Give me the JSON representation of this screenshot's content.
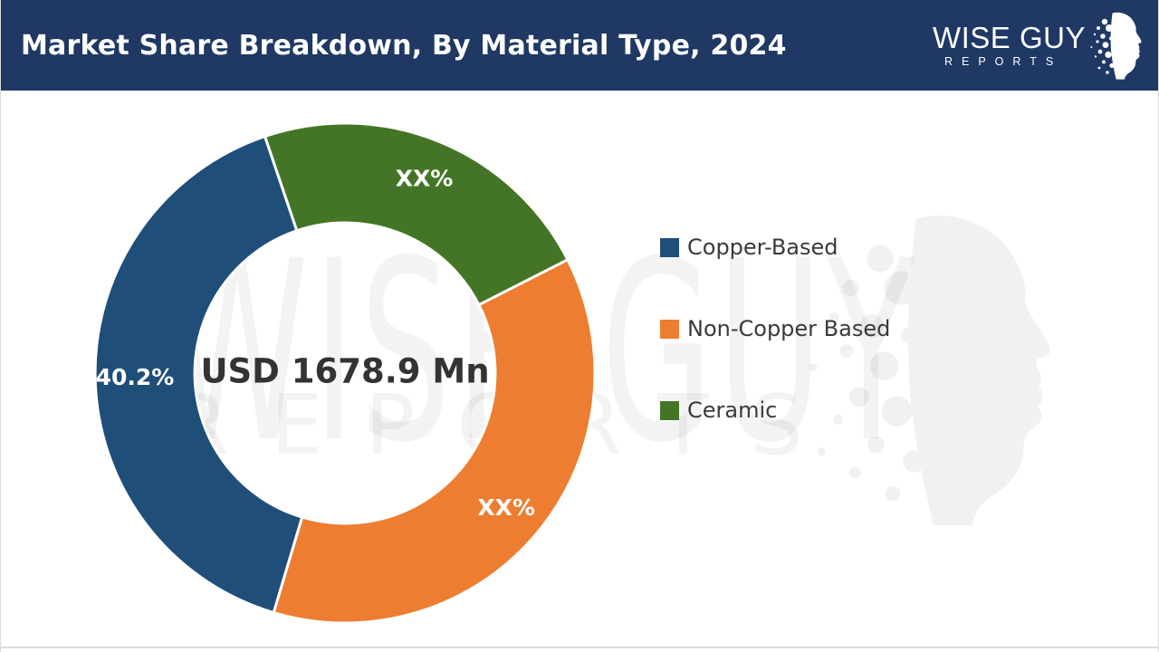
{
  "header": {
    "title": "Market Share Breakdown, By Material Type, 2024",
    "brand": {
      "line1": "WISE GUY",
      "line2": "REPORTS"
    }
  },
  "watermark": {
    "line1": "WISE GUY",
    "line2": "REPORTS"
  },
  "chart_data": {
    "type": "pie",
    "subtype": "donut",
    "title": "Market Share Breakdown, By Material Type, 2024",
    "center_label": "USD 1678.9 Mn",
    "start_angle_deg_clockwise_from_top": -18.7,
    "segments": [
      {
        "name": "Ceramic",
        "display_label": "XX%",
        "share_pct_est": 22.7,
        "color": "#447527"
      },
      {
        "name": "Non-Copper Based",
        "display_label": "XX%",
        "share_pct_est": 37.1,
        "color": "#ed7d31"
      },
      {
        "name": "Copper-Based",
        "display_label": "40.2%",
        "share_pct_est": 40.2,
        "color": "#1f4e79"
      }
    ],
    "legend": [
      {
        "label": "Copper-Based",
        "color": "#1f4e79"
      },
      {
        "label": "Non-Copper Based",
        "color": "#ed7d31"
      },
      {
        "label": "Ceramic",
        "color": "#447527"
      }
    ],
    "legend_position": "right"
  },
  "colors": {
    "header_bg": "#1f3864",
    "center_text": "#333333",
    "legend_text": "#3a3a3a"
  }
}
